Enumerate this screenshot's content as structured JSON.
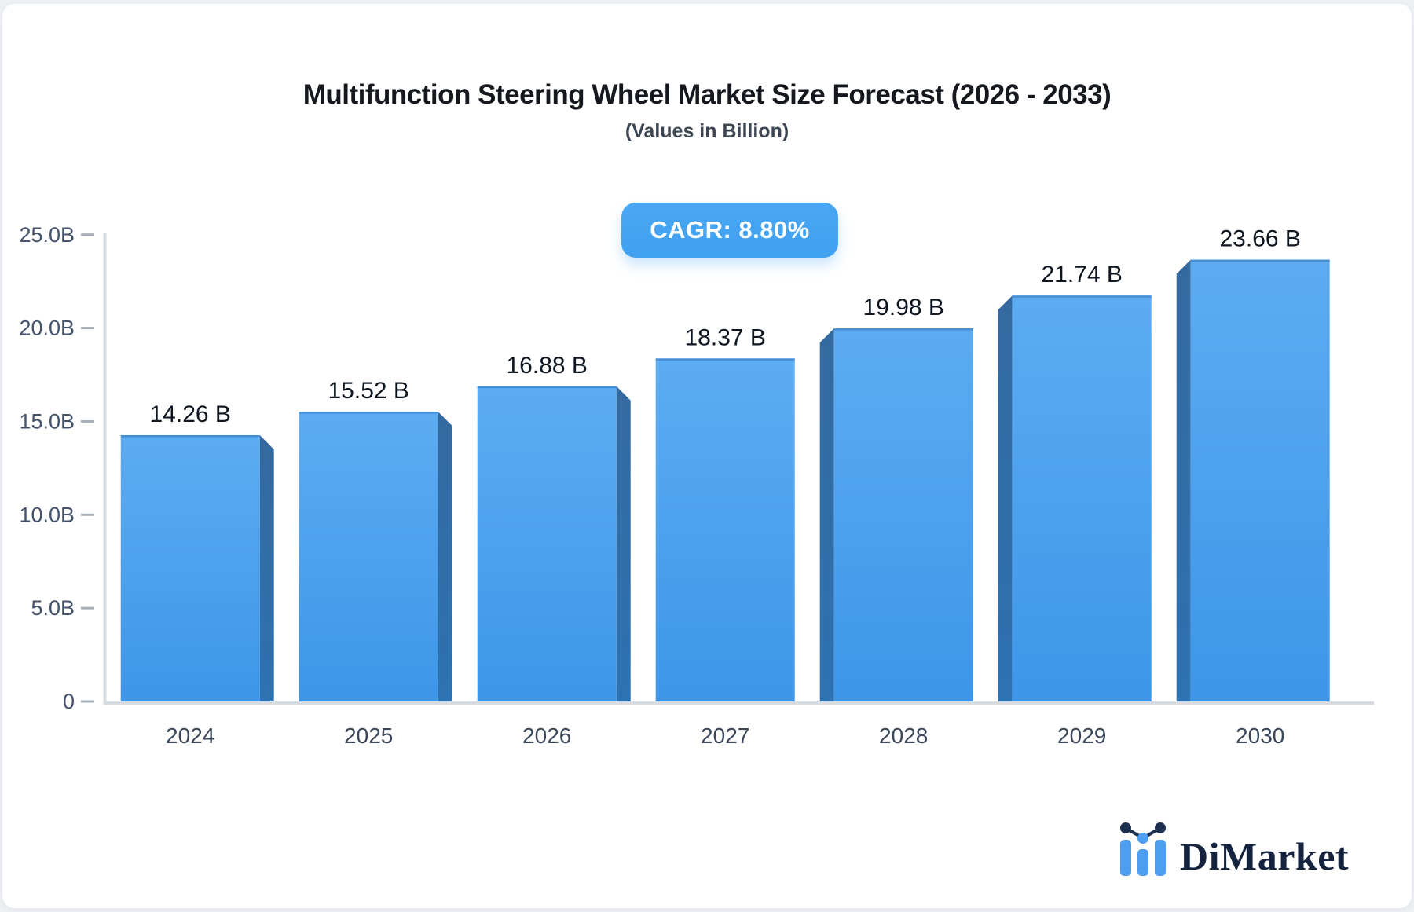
{
  "page": {
    "background_color": "#eef1f4",
    "card_color": "#ffffff"
  },
  "header": {
    "title": "Multifunction Steering Wheel Market Size Forecast (2026 - 2033)",
    "subtitle": "(Values in Billion)"
  },
  "badge": {
    "label": "CAGR: 8.80%",
    "background_color": "#3fa1f1",
    "text_color": "#ffffff"
  },
  "chart_data": {
    "type": "bar",
    "title": "Multifunction Steering Wheel Market Size Forecast (2026 - 2033)",
    "subtitle": "(Values in Billion)",
    "cagr_annotation": "CAGR: 8.80%",
    "categories": [
      "2024",
      "2025",
      "2026",
      "2027",
      "2028",
      "2029",
      "2030"
    ],
    "values": [
      14.26,
      15.52,
      16.88,
      18.37,
      19.98,
      21.74,
      23.66
    ],
    "value_labels": [
      "14.26 B",
      "15.52 B",
      "16.88 B",
      "18.37 B",
      "19.98 B",
      "21.74 B",
      "23.66 B"
    ],
    "unit": "Billion",
    "ylim": [
      0,
      25
    ],
    "yticks": [
      0,
      5,
      10,
      15,
      20,
      25
    ],
    "ytick_labels": [
      "0",
      "5.0B",
      "10.0B",
      "15.0B",
      "20.0B",
      "25.0B"
    ],
    "grid": false,
    "legend": "none",
    "style_3d": true,
    "colors": {
      "bar_face_top": "#5dacf1",
      "bar_face_bottom": "#3e96e9",
      "bar_top_edge": "#4187cf",
      "bar_side": "#2e71ae",
      "axis_line": "#d6dce1",
      "tick_dash": "#a7b0ba",
      "ytick_text": "#44536b",
      "xtick_text": "#3a4759",
      "value_text": "#0e1621"
    }
  },
  "logo": {
    "text": "DiMarket",
    "icon": "mini-bar-chart-icon",
    "icon_bar_color": "#4d9df0",
    "icon_dot_color": "#1e3050",
    "text_color": "#16233e"
  }
}
